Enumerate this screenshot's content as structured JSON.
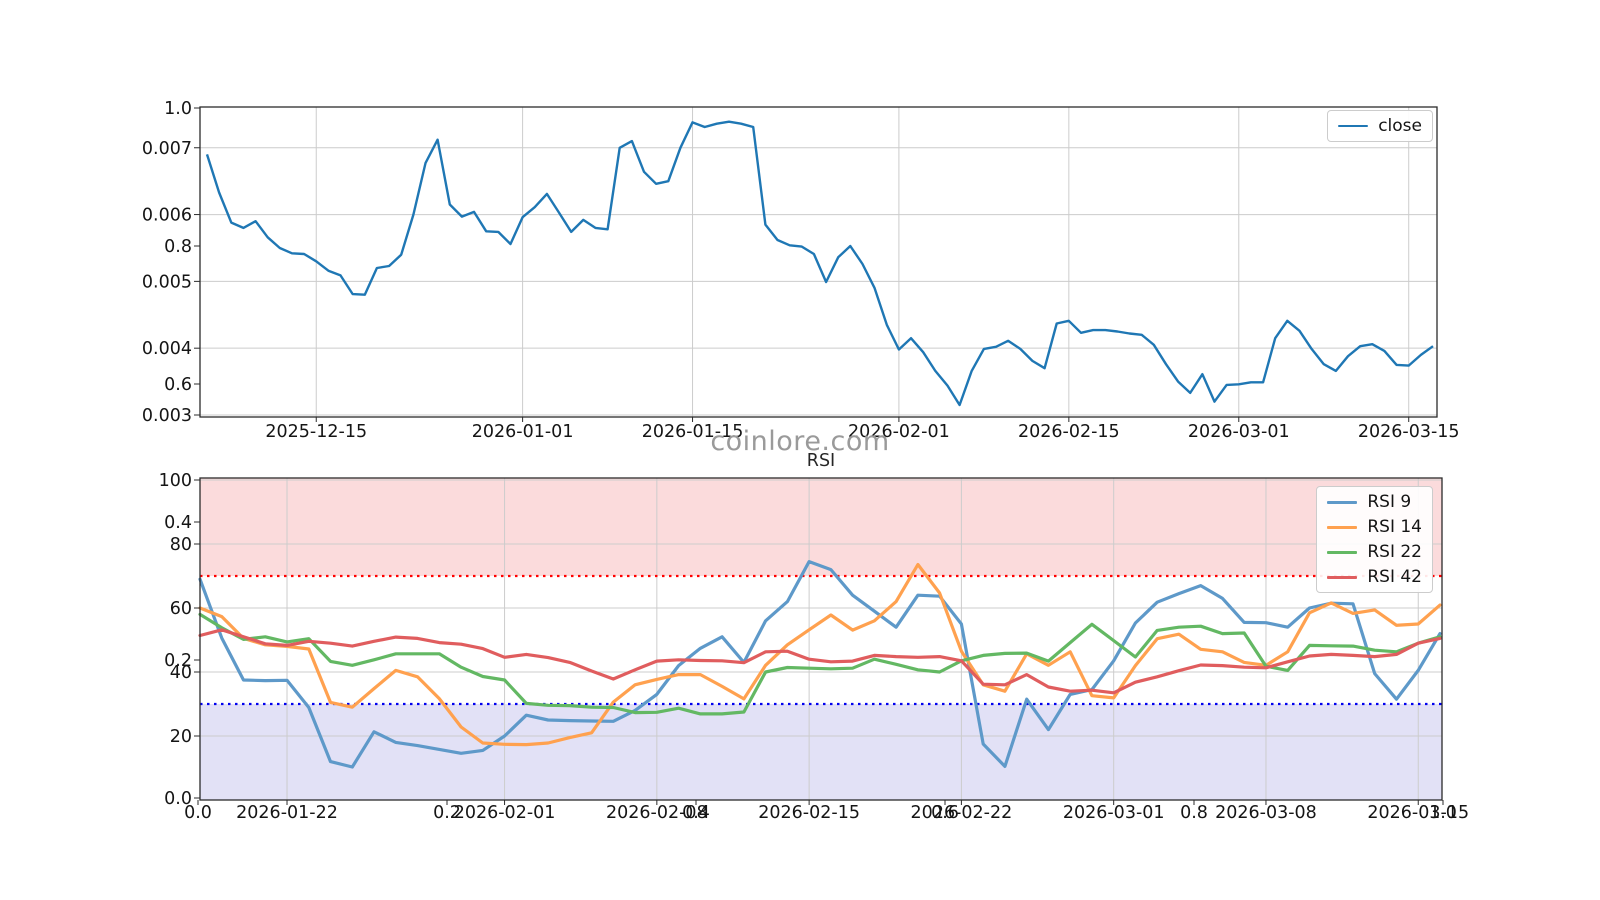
{
  "watermark": "coinlore.com",
  "fraction_axis": {
    "x_labels": [
      "0.0",
      "0.2",
      "0.4",
      "0.6",
      "0.8",
      "1.0"
    ],
    "y_labels": [
      "1.0",
      "0.8",
      "0.6",
      "0.4",
      "0.2",
      "0.0"
    ]
  },
  "chart_data": [
    {
      "type": "line",
      "id": "price",
      "grid": true,
      "legend_position": "upper right",
      "x_start": "2025-12-06",
      "x_interval": "1 day",
      "x_tick_labels": [
        "2025-12-15",
        "2026-01-01",
        "2026-01-15",
        "2026-02-01",
        "2026-02-15",
        "2026-03-01",
        "2026-03-15"
      ],
      "y_tick_labels": [
        "0.003",
        "0.004",
        "0.005",
        "0.006",
        "0.007"
      ],
      "ylim": [
        0.00297,
        0.00761
      ],
      "series": [
        {
          "name": "close",
          "color": "#1f77b4",
          "values": [
            0.0069,
            0.00633,
            0.00588,
            0.0058,
            0.0059,
            0.00566,
            0.0055,
            0.00542,
            0.00541,
            0.0053,
            0.00516,
            0.00509,
            0.00481,
            0.0048,
            0.0052,
            0.00523,
            0.0054,
            0.006,
            0.00677,
            0.00712,
            0.00615,
            0.00597,
            0.00604,
            0.00575,
            0.00574,
            0.00556,
            0.00596,
            0.00611,
            0.00631,
            0.00603,
            0.00574,
            0.00592,
            0.0058,
            0.00578,
            0.007,
            0.0071,
            0.00664,
            0.00646,
            0.0065,
            0.007,
            0.00738,
            0.00731,
            0.00736,
            0.00739,
            0.00736,
            0.00731,
            0.00585,
            0.00562,
            0.00554,
            0.00552,
            0.00541,
            0.00499,
            0.00536,
            0.00553,
            0.00526,
            0.0049,
            0.00435,
            0.00398,
            0.00415,
            0.00394,
            0.00366,
            0.00344,
            0.00315,
            0.00366,
            0.00399,
            0.00402,
            0.00411,
            0.00399,
            0.00381,
            0.0037,
            0.00437,
            0.00441,
            0.00423,
            0.00427,
            0.00427,
            0.00425,
            0.00422,
            0.0042,
            0.00405,
            0.00376,
            0.0035,
            0.00333,
            0.00361,
            0.0032,
            0.00345,
            0.00346,
            0.00349,
            0.00349,
            0.00415,
            0.00441,
            0.00426,
            0.00399,
            0.00376,
            0.00366,
            0.00388,
            0.00403,
            0.00406,
            0.00396,
            0.00375,
            0.00374,
            0.0039,
            0.00403
          ]
        }
      ]
    },
    {
      "type": "line",
      "id": "rsi",
      "title": "RSI",
      "grid": true,
      "legend_position": "upper right",
      "x_start": "2026-01-18",
      "x_interval": "1 day",
      "x_tick_labels": [
        "2026-01-22",
        "2026-02-01",
        "2026-02-08",
        "2026-02-15",
        "2026-02-22",
        "2026-03-01",
        "2026-03-08",
        "2026-03-15"
      ],
      "y_tick_labels": [
        "20",
        "40",
        "60",
        "80",
        "100"
      ],
      "ylim": [
        0,
        100
      ],
      "overbought_level": 70,
      "oversold_level": 30,
      "overbought_line_color": "#ff0000",
      "oversold_line_color": "#0000ee",
      "overbought_band_color": "#fbdbdc",
      "oversold_band_color": "#e2e1f6",
      "series": [
        {
          "name": "RSI 9",
          "color": "#5e99c9",
          "values": [
            69,
            50.6,
            37.5,
            37.3,
            37.4,
            28.9,
            12,
            10.3,
            21.3,
            18,
            17,
            15.8,
            14.6,
            15.5,
            20,
            26.5,
            25,
            24.8,
            24.7,
            24.6,
            28,
            33,
            42,
            47.4,
            51,
            43,
            56,
            62,
            74.5,
            72,
            64,
            59,
            54,
            64,
            63.7,
            55,
            17.5,
            10.5,
            31.5,
            22,
            33,
            34.5,
            43.5,
            55.3,
            61.8,
            64.5,
            67,
            63,
            55.5,
            55.4,
            54,
            60,
            61.5,
            61.3,
            39.5,
            31.5,
            40.5,
            52
          ]
        },
        {
          "name": "RSI 14",
          "color": "#ffa14f",
          "values": [
            60,
            57.3,
            50.5,
            48.5,
            48,
            47.2,
            30.5,
            29,
            34.8,
            40.5,
            38.5,
            31.7,
            22.8,
            17.8,
            17.4,
            17.3,
            17.8,
            19.5,
            21,
            30.6,
            36,
            37.7,
            39.2,
            39.2,
            35.5,
            31.6,
            42.1,
            48.5,
            53.2,
            57.8,
            53.1,
            56,
            62,
            73.6,
            64.7,
            46.5,
            36,
            34,
            45.7,
            42.1,
            46.3,
            32.6,
            31.9,
            42,
            50.4,
            51.8,
            47.1,
            46.3,
            43,
            42.1,
            46.3,
            58.5,
            61.6,
            58.3,
            59.4,
            54.6,
            55,
            60.9
          ]
        },
        {
          "name": "RSI 22",
          "color": "#63b863",
          "values": [
            58,
            53.8,
            50.2,
            51,
            49.4,
            50.4,
            43.3,
            42.1,
            43.8,
            45.7,
            45.7,
            45.7,
            41.5,
            38.6,
            37.5,
            30.2,
            29.6,
            29.5,
            29,
            28.9,
            27.3,
            27.4,
            28.7,
            26.9,
            26.9,
            27.5,
            40,
            41.4,
            41.2,
            41,
            41.2,
            44,
            42.4,
            40.7,
            40,
            43.5,
            45.2,
            45.8,
            45.9,
            43.4,
            49.2,
            54.9,
            49.8,
            44.7,
            53,
            54,
            54.3,
            52,
            52.2,
            41.8,
            40.5,
            48.3,
            48.2,
            48.1,
            46.8,
            46.3,
            49,
            51
          ]
        },
        {
          "name": "RSI 42",
          "color": "#e05d5e",
          "values": [
            51.4,
            53.2,
            51,
            48.8,
            48.3,
            49.6,
            49,
            48.1,
            49.6,
            50.9,
            50.5,
            49.2,
            48.7,
            47.3,
            44.6,
            45.5,
            44.5,
            43,
            40.3,
            37.8,
            40.7,
            43.4,
            43.8,
            43.6,
            43.5,
            42.9,
            46.3,
            46.5,
            44,
            43.2,
            43.4,
            45.2,
            44.8,
            44.6,
            44.8,
            43.5,
            36.2,
            36,
            39.2,
            35.3,
            34,
            34.3,
            33.5,
            36.8,
            38.5,
            40.4,
            42.2,
            42,
            41.5,
            41.3,
            43.2,
            45,
            45.5,
            45.2,
            44.8,
            45.5,
            49,
            50.5
          ]
        }
      ]
    }
  ]
}
